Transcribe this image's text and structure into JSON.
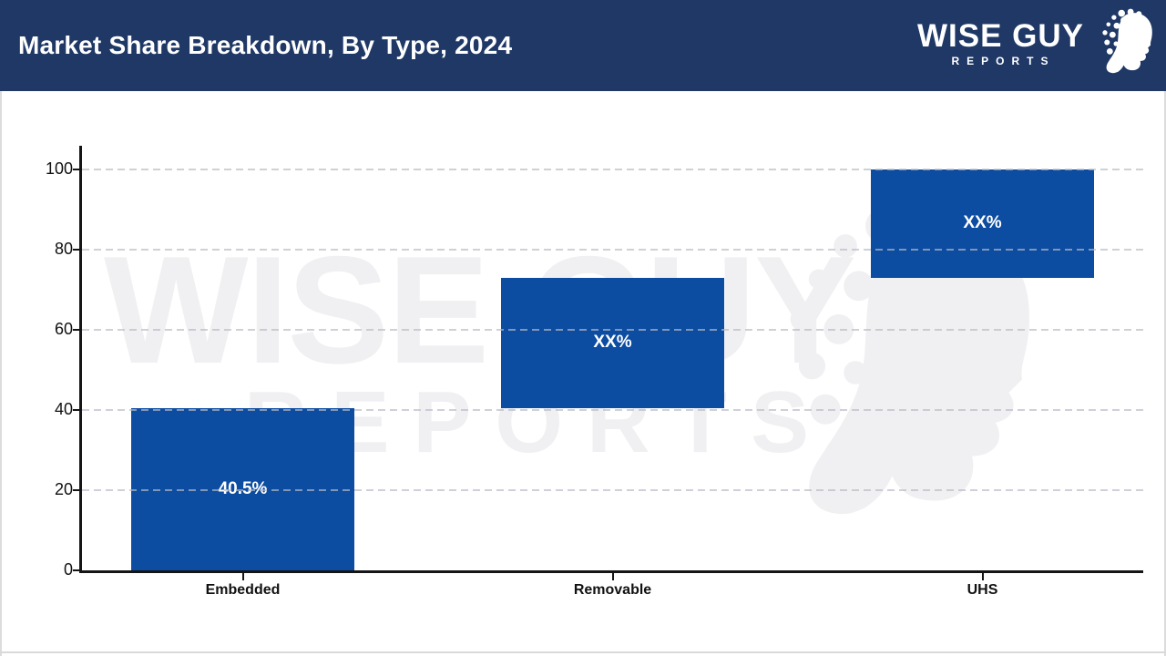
{
  "header": {
    "title": "Market Share Breakdown, By Type, 2024",
    "logo": {
      "line1": "WISE GUY",
      "line2": "REPORTS"
    }
  },
  "watermark": {
    "line1": "WISE GUY",
    "line2": "REPORTS"
  },
  "chart_data": {
    "type": "bar",
    "variant": "floating-segment-waterfall",
    "title": "Market Share Breakdown, By Type, 2024",
    "categories": [
      "Embedded",
      "Removable",
      "UHS"
    ],
    "bars": [
      {
        "category": "Embedded",
        "start": 0,
        "end": 40.5,
        "label": "40.5%"
      },
      {
        "category": "Removable",
        "start": 40.5,
        "end": 73,
        "label": "XX%"
      },
      {
        "category": "UHS",
        "start": 73,
        "end": 100,
        "label": "XX%"
      }
    ],
    "ylim": [
      0,
      100
    ],
    "yticks": [
      0,
      20,
      40,
      60,
      80,
      100
    ],
    "grid": "horizontal-dashed",
    "legend": "none",
    "colors": {
      "bar": "#0c4ca1",
      "bar_label": "#ffffff",
      "header_bg": "#1f3866",
      "axis": "#151515",
      "gridline": "#d8dade",
      "watermark": "#f0f0f2"
    }
  }
}
